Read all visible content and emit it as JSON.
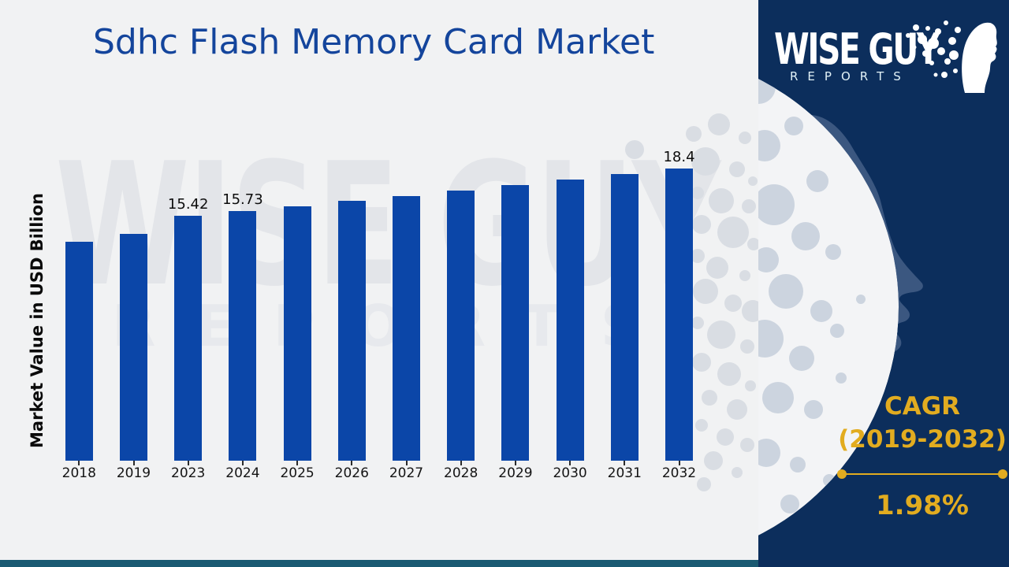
{
  "title": "Sdhc Flash Memory Card Market",
  "watermark": {
    "line1": "WISE GUY",
    "line2": "REPORTS"
  },
  "logo": {
    "brand": "WISE GUY",
    "sub": "REPORTS",
    "face_icon": "head-profile-dots-icon"
  },
  "cagr": {
    "heading": "CAGR",
    "range": "(2019-2032)",
    "value": "1.98%"
  },
  "chart_data": {
    "type": "bar",
    "title": "Sdhc Flash Memory Card Market",
    "xlabel": "",
    "ylabel": "Market Value in USD Billion",
    "categories": [
      "2018",
      "2019",
      "2023",
      "2024",
      "2025",
      "2026",
      "2027",
      "2028",
      "2029",
      "2030",
      "2031",
      "2032"
    ],
    "values": [
      13.8,
      14.3,
      15.42,
      15.73,
      16.0,
      16.35,
      16.65,
      17.0,
      17.35,
      17.7,
      18.05,
      18.4
    ],
    "data_labels": [
      "",
      "",
      "15.42",
      "15.73",
      "",
      "",
      "",
      "",
      "",
      "",
      "",
      "18.4"
    ],
    "ylim": [
      0,
      20
    ],
    "grid": false,
    "legend": "none",
    "bar_color": "#0b46a8"
  },
  "colors": {
    "bar_blue": "#0b46a8",
    "title_blue": "#14459c",
    "panel_navy": "#0c2e5c",
    "face_blue": "#3b5780",
    "accent_gold": "#e2ac20",
    "bottom_teal": "#1a5a72",
    "page_bg": "#f1f2f3",
    "watermark_gray": "#e3e5e9"
  }
}
